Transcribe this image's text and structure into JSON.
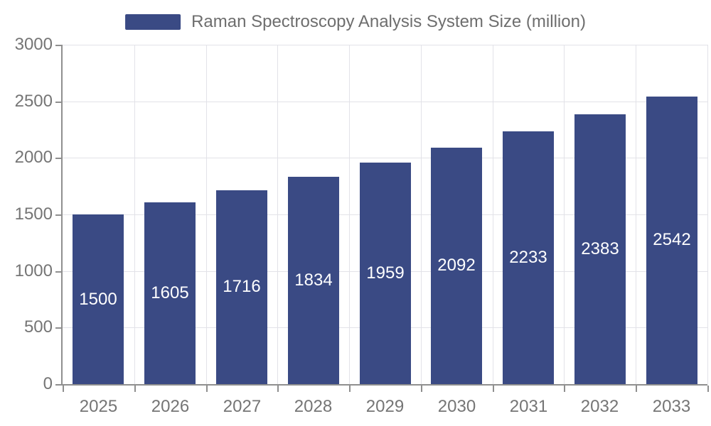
{
  "legend": {
    "label": "Raman Spectroscopy Analysis System Size (million)"
  },
  "chart_data": {
    "type": "bar",
    "title": "Raman Spectroscopy Analysis System Size (million)",
    "categories": [
      "2025",
      "2026",
      "2027",
      "2028",
      "2029",
      "2030",
      "2031",
      "2032",
      "2033"
    ],
    "values": [
      1500,
      1605,
      1716,
      1834,
      1959,
      2092,
      2233,
      2383,
      2542
    ],
    "xlabel": "",
    "ylabel": "",
    "ylim": [
      0,
      3000
    ],
    "yticks": [
      0,
      500,
      1000,
      1500,
      2000,
      2500,
      3000
    ],
    "grid": true,
    "legend_position": "top",
    "value_label_position": "inside-center",
    "colors": {
      "bar": "#3a4a84",
      "grid": "#e2e2e8",
      "axis": "#8f8f8f",
      "tick_label": "#757575",
      "value_label": "#ffffff",
      "legend_text": "#6e6e6e"
    }
  }
}
